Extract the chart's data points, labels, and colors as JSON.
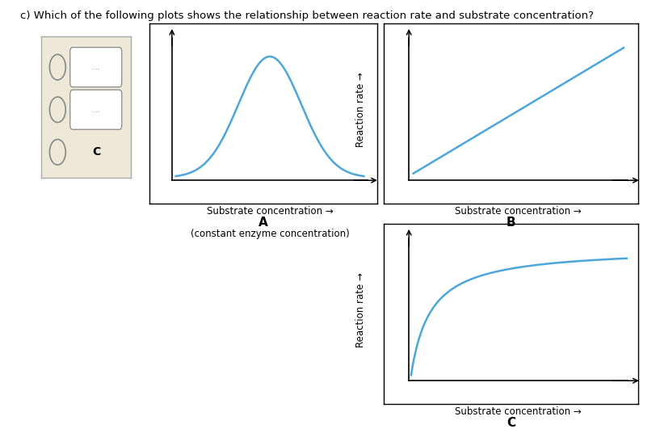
{
  "title_text": "c) Which of the following plots shows the relationship between reaction rate and substrate concentration?",
  "title_fontsize": 9.5,
  "curve_color": "#4da6d9",
  "line_width": 1.8,
  "ylabel": "Reaction rate →",
  "xlabel_line1": "Substrate concentration →",
  "xlabel_line2": "(constant enzyme concentration)",
  "label_fontsize": 8.5,
  "panel_label_fontsize": 11,
  "bg_color": "#ffffff",
  "panel_labels": [
    "A",
    "B",
    "C"
  ],
  "box_bg": "#ede8d8",
  "box_edge": "#aaaaaa",
  "radio_color": "#888888"
}
